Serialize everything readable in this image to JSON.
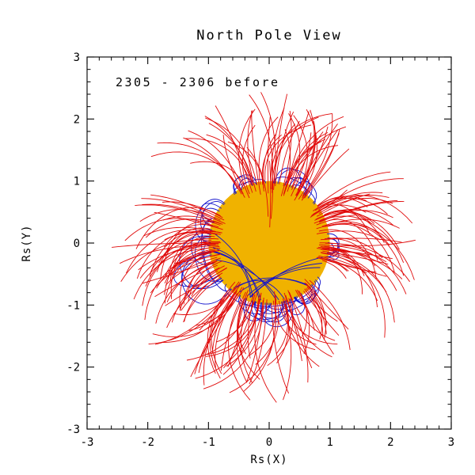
{
  "chart_data": {
    "type": "line",
    "title": "North Pole View",
    "annotation": "2305 - 2306 before",
    "xlabel": "Rs(X)",
    "ylabel": "Rs(Y)",
    "xlim": [
      -3,
      3
    ],
    "ylim": [
      -3,
      3
    ],
    "x_ticks": [
      -3,
      -2,
      -1,
      0,
      1,
      2,
      3
    ],
    "y_ticks": [
      -3,
      -2,
      -1,
      0,
      1,
      2,
      3
    ],
    "minor_tick_step": 0.2,
    "grid": false,
    "legend": null,
    "colors": {
      "background": "#FFFFFF",
      "axis": "#000000",
      "text": "#000000",
      "open_field": "#E00A0A",
      "closed_field": "#1212CC"
    },
    "sun": {
      "center_x": 0,
      "center_y": 0,
      "radius": 1.0,
      "color": "#F0B200"
    },
    "field_lines": {
      "seed": 20230519,
      "open_clusters": [
        {
          "center": 95,
          "spread": 26,
          "count": 40,
          "r_start": [
            0.78,
            1.02
          ],
          "r_end": [
            1.75,
            2.45
          ],
          "drift_bias": 0,
          "drift_spread": 26
        },
        {
          "center": 60,
          "spread": 9,
          "count": 15,
          "r_start": [
            0.8,
            1.0
          ],
          "r_end": [
            1.9,
            2.35
          ],
          "drift_bias": 8,
          "drift_spread": 12
        },
        {
          "center": 14,
          "spread": 24,
          "count": 44,
          "r_start": [
            0.78,
            1.02
          ],
          "r_end": [
            1.45,
            2.5
          ],
          "drift_bias": -14,
          "drift_spread": 18
        },
        {
          "center": 348,
          "spread": 10,
          "count": 14,
          "r_start": [
            0.8,
            1.0
          ],
          "r_end": [
            1.3,
            2.1
          ],
          "drift_bias": -8,
          "drift_spread": 10
        },
        {
          "center": 172,
          "spread": 21,
          "count": 42,
          "r_start": [
            0.78,
            1.02
          ],
          "r_end": [
            1.7,
            2.6
          ],
          "drift_bias": 16,
          "drift_spread": 16
        },
        {
          "center": 204,
          "spread": 12,
          "count": 18,
          "r_start": [
            0.8,
            1.0
          ],
          "r_end": [
            1.5,
            2.35
          ],
          "drift_bias": 6,
          "drift_spread": 12
        },
        {
          "center": 262,
          "spread": 34,
          "count": 56,
          "r_start": [
            0.78,
            1.02
          ],
          "r_end": [
            1.75,
            2.6
          ],
          "drift_bias": 0,
          "drift_spread": 22
        },
        {
          "center": 308,
          "spread": 11,
          "count": 13,
          "r_start": [
            0.8,
            1.0
          ],
          "r_end": [
            1.5,
            2.2
          ],
          "drift_bias": -6,
          "drift_spread": 10
        },
        {
          "center": 86,
          "spread": 8,
          "count": 3,
          "r_start": [
            0.15,
            0.45
          ],
          "r_end": [
            1.25,
            1.6
          ],
          "drift_bias": 4,
          "drift_spread": 8
        }
      ],
      "closed_clusters": [
        {
          "center": 268,
          "spread": 28,
          "count": 13,
          "sep": [
            18,
            55
          ],
          "height": [
            0.08,
            0.55
          ]
        },
        {
          "center": 305,
          "spread": 12,
          "count": 6,
          "sep": [
            14,
            38
          ],
          "height": [
            0.08,
            0.45
          ]
        },
        {
          "center": 192,
          "spread": 18,
          "count": 8,
          "sep": [
            22,
            70
          ],
          "height": [
            0.25,
            1.0
          ]
        },
        {
          "center": 158,
          "spread": 12,
          "count": 5,
          "sep": [
            14,
            40
          ],
          "height": [
            0.15,
            0.55
          ]
        },
        {
          "center": 64,
          "spread": 14,
          "count": 7,
          "sep": [
            14,
            42
          ],
          "height": [
            0.12,
            0.5
          ]
        },
        {
          "center": 108,
          "spread": 9,
          "count": 5,
          "sep": [
            10,
            28
          ],
          "height": [
            0.08,
            0.35
          ]
        },
        {
          "center": 358,
          "spread": 10,
          "count": 5,
          "sep": [
            10,
            26
          ],
          "height": [
            0.08,
            0.3
          ]
        }
      ],
      "disk_chords": {
        "count": 12,
        "center": 255,
        "spread": 45,
        "chord": [
          45,
          115
        ],
        "foot_r": 0.93,
        "control_r": 0.42
      }
    },
    "description": "Solar coronal magnetic field lines viewed from above the north pole; red = open field lines, blue = closed loops, gold disk = Sun of radius 1 Rs."
  }
}
